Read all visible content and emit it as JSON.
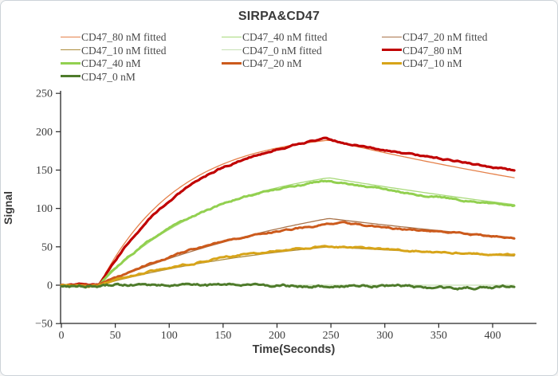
{
  "window": {
    "background": "#ffffff",
    "border_color": "#ccd3d8"
  },
  "chart": {
    "title": "SIRPA&CD47",
    "xlabel": "Time(Seconds)",
    "ylabel": "Signal",
    "text_color": "#3d3d3d",
    "axis_color": "#262626"
  },
  "legend": {
    "items": [
      {
        "key": "cd47-80-fitted",
        "label": "CD47_80 nM fitted",
        "color": "#E5814A",
        "thick": false
      },
      {
        "key": "cd47-40-fitted",
        "label": "CD47_40 nM fitted",
        "color": "#A8DA7A",
        "thick": false
      },
      {
        "key": "cd47-20-fitted",
        "label": "CD47_20 nM fitted",
        "color": "#A9734A",
        "thick": false
      },
      {
        "key": "cd47-10-fitted",
        "label": "CD47_10 nM fitted",
        "color": "#AD8D3B",
        "thick": false
      },
      {
        "key": "cd47-0-fitted",
        "label": "CD47_0 nM fitted",
        "color": "#C6E0B4",
        "thick": false
      },
      {
        "key": "cd47-80",
        "label": "CD47_80 nM",
        "color": "#C00000",
        "thick": true
      },
      {
        "key": "cd47-40",
        "label": "CD47_40 nM",
        "color": "#92D050",
        "thick": true
      },
      {
        "key": "cd47-20",
        "label": "CD47_20 nM",
        "color": "#CC5A1C",
        "thick": true
      },
      {
        "key": "cd47-10",
        "label": "CD47_10 nM",
        "color": "#D7A419",
        "thick": true
      },
      {
        "key": "cd47-0",
        "label": "CD47_0 nM",
        "color": "#4E7B2B",
        "thick": true
      }
    ]
  },
  "chart_data": {
    "type": "line",
    "title": "SIRPA&CD47",
    "xlabel": "Time(Seconds)",
    "ylabel": "Signal",
    "xlim": [
      0,
      440
    ],
    "ylim": [
      -50,
      250
    ],
    "x_ticks": [
      0,
      50,
      100,
      150,
      200,
      250,
      300,
      350,
      400
    ],
    "y_ticks": [
      250,
      200,
      150,
      100,
      50,
      0,
      -50
    ],
    "grid": false,
    "legend_position": "top",
    "association_start_s": 35,
    "dissociation_start_s": 250,
    "trace_end_s": 420,
    "sample_times": [
      0,
      35,
      50,
      100,
      150,
      200,
      245,
      300,
      350,
      420
    ],
    "series": [
      {
        "name": "CD47_80 nM fitted",
        "color": "#E5814A",
        "width": 1.3,
        "style": "fitted",
        "k": 0.0135,
        "peak": 189,
        "peak_time": 248,
        "end": 140,
        "noise": 0,
        "seed": 1,
        "samples": [
          0,
          0,
          37,
          117,
          158,
          179,
          189,
          172,
          158,
          140
        ]
      },
      {
        "name": "CD47_40 nM fitted",
        "color": "#A8DA7A",
        "width": 1.3,
        "style": "fitted",
        "k": 0.009,
        "peak": 140,
        "peak_time": 248,
        "end": 105,
        "noise": 0,
        "seed": 2,
        "samples": [
          0,
          0,
          21,
          73,
          106,
          127,
          140,
          128,
          118,
          105
        ]
      },
      {
        "name": "CD47_20 nM fitted",
        "color": "#A9734A",
        "width": 1.3,
        "style": "fitted",
        "k": 0.004,
        "peak": 87,
        "peak_time": 248,
        "end": 62,
        "noise": 0,
        "seed": 3,
        "samples": [
          0,
          0,
          9,
          35,
          56,
          73,
          87,
          79,
          71,
          62
        ]
      },
      {
        "name": "CD47_10 nM fitted",
        "color": "#AD8D3B",
        "width": 1.3,
        "style": "fitted",
        "k": 0.005,
        "peak": 50,
        "peak_time": 248,
        "end": 38,
        "noise": 0,
        "seed": 4,
        "samples": [
          0,
          0,
          6,
          21,
          33,
          43,
          50,
          46,
          43,
          38
        ]
      },
      {
        "name": "CD47_0 nM fitted",
        "color": "#C6E0B4",
        "width": 1.3,
        "style": "fitted",
        "k": 0.005,
        "peak": 0,
        "peak_time": 248,
        "end": 0,
        "noise": 0,
        "seed": 5,
        "samples": [
          0,
          0,
          0,
          0,
          0,
          0,
          0,
          0,
          0,
          0
        ]
      },
      {
        "name": "CD47_80 nM",
        "color": "#C00000",
        "width": 3.2,
        "style": "raw",
        "k": 0.0115,
        "peak": 190,
        "peak_time": 245,
        "end": 150,
        "noise": 0.9,
        "seed": 7,
        "samples": [
          0,
          0,
          33,
          110,
          153,
          177,
          190,
          176,
          165,
          150
        ]
      },
      {
        "name": "CD47_40 nM",
        "color": "#92D050",
        "width": 3.0,
        "style": "raw",
        "k": 0.01,
        "peak": 136,
        "peak_time": 245,
        "end": 103,
        "noise": 0.9,
        "seed": 11,
        "samples": [
          0,
          0,
          22,
          74,
          106,
          125,
          136,
          125,
          115,
          103
        ]
      },
      {
        "name": "CD47_20 nM",
        "color": "#CC5A1C",
        "width": 3.0,
        "style": "raw",
        "k": 0.0068,
        "peak": 81,
        "peak_time": 260,
        "end": 62,
        "noise": 0.9,
        "seed": 13,
        "samples": [
          0,
          0,
          11,
          39,
          59,
          73,
          79,
          76,
          70,
          62
        ]
      },
      {
        "name": "CD47_10 nM",
        "color": "#D7A419",
        "width": 3.0,
        "style": "raw",
        "k": 0.006,
        "peak": 51,
        "peak_time": 245,
        "end": 39,
        "noise": 0.9,
        "seed": 17,
        "samples": [
          0,
          0,
          6,
          23,
          36,
          45,
          51,
          47,
          44,
          39
        ]
      },
      {
        "name": "CD47_0 nM",
        "color": "#4E7B2B",
        "width": 3.0,
        "style": "raw",
        "k": 0.005,
        "peak": 0,
        "peak_time": 245,
        "end": 0,
        "drift": -3,
        "noise": 1.5,
        "seed": 23,
        "samples": [
          0,
          0,
          0,
          1,
          0,
          -1,
          0,
          -1,
          -2,
          -3
        ]
      }
    ]
  }
}
